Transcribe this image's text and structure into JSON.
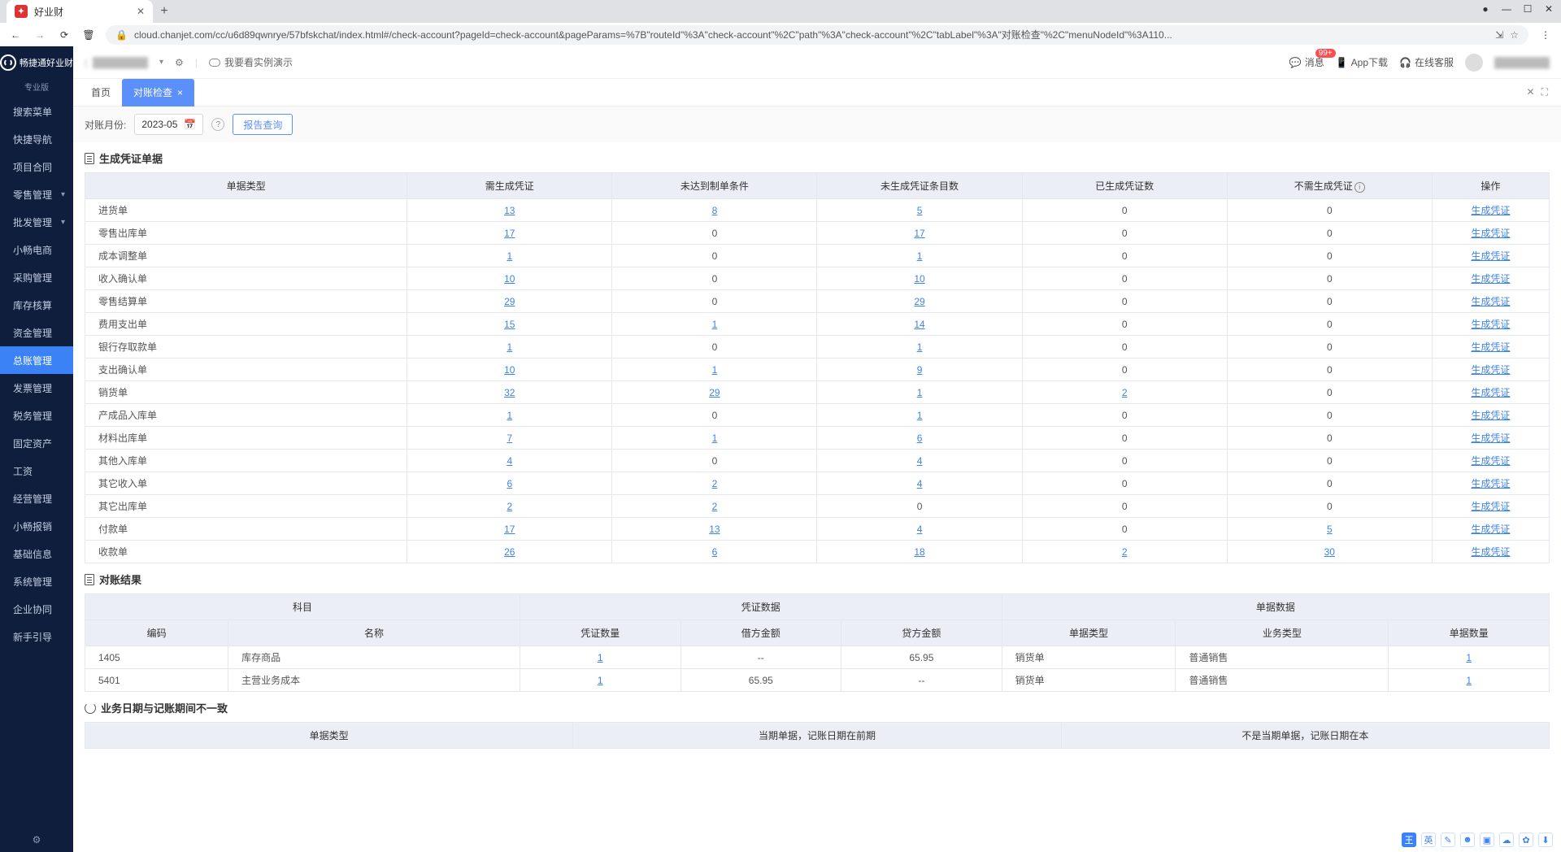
{
  "browser": {
    "tab_title": "好业财",
    "url": "cloud.chanjet.com/cc/u6d89qwnrye/57bfskchat/index.html#/check-account?pageId=check-account&pageParams=%7B\"routeId\"%3A\"check-account\"%2C\"path\"%3A\"check-account\"%2C\"tabLabel\"%3A\"对账检查\"%2C\"menuNodeId\"%3A110..."
  },
  "logo": {
    "name": "畅捷通好业财",
    "edition": "专业版"
  },
  "sidebar": [
    {
      "label": "搜索菜单",
      "chev": false
    },
    {
      "label": "快捷导航",
      "chev": false
    },
    {
      "label": "项目合同",
      "chev": false
    },
    {
      "label": "零售管理",
      "chev": true
    },
    {
      "label": "批发管理",
      "chev": true
    },
    {
      "label": "小畅电商",
      "chev": false
    },
    {
      "label": "采购管理",
      "chev": false
    },
    {
      "label": "库存核算",
      "chev": false
    },
    {
      "label": "资金管理",
      "chev": false
    },
    {
      "label": "总账管理",
      "chev": false,
      "active": true
    },
    {
      "label": "发票管理",
      "chev": false
    },
    {
      "label": "税务管理",
      "chev": false
    },
    {
      "label": "固定资产",
      "chev": false
    },
    {
      "label": "工资",
      "chev": false
    },
    {
      "label": "经营管理",
      "chev": false
    },
    {
      "label": "小畅报销",
      "chev": false
    },
    {
      "label": "基础信息",
      "chev": false
    },
    {
      "label": "系统管理",
      "chev": false
    },
    {
      "label": "企业协同",
      "chev": false
    },
    {
      "label": "新手引导",
      "chev": false
    }
  ],
  "topbar": {
    "org": "████████",
    "demo": "我要看实例演示",
    "msg": "消息",
    "msg_badge": "99+",
    "app": "App下载",
    "svc": "在线客服",
    "user": "████████"
  },
  "tabs": {
    "home": "首页",
    "active": "对账检查"
  },
  "filters": {
    "month_label": "对账月份:",
    "month_value": "2023-05",
    "query": "报告查询"
  },
  "section1": {
    "title": "生成凭证单据",
    "headers": [
      "单据类型",
      "需生成凭证",
      "未达到制单条件",
      "未生成凭证条目数",
      "已生成凭证数",
      "不需生成凭证",
      "操作"
    ],
    "info_col": 5,
    "rows": [
      {
        "type": "进货单",
        "c1": "13",
        "c2": "8",
        "c3": "5",
        "c4": "0",
        "c5": "0",
        "op": "生成凭证",
        "l": [
          1,
          2,
          3
        ]
      },
      {
        "type": "零售出库单",
        "c1": "17",
        "c2": "0",
        "c3": "17",
        "c4": "0",
        "c5": "0",
        "op": "生成凭证",
        "l": [
          1,
          3
        ]
      },
      {
        "type": "成本调整单",
        "c1": "1",
        "c2": "0",
        "c3": "1",
        "c4": "0",
        "c5": "0",
        "op": "生成凭证",
        "l": [
          1,
          3
        ]
      },
      {
        "type": "收入确认单",
        "c1": "10",
        "c2": "0",
        "c3": "10",
        "c4": "0",
        "c5": "0",
        "op": "生成凭证",
        "l": [
          1,
          3
        ]
      },
      {
        "type": "零售结算单",
        "c1": "29",
        "c2": "0",
        "c3": "29",
        "c4": "0",
        "c5": "0",
        "op": "生成凭证",
        "l": [
          1,
          3
        ]
      },
      {
        "type": "费用支出单",
        "c1": "15",
        "c2": "1",
        "c3": "14",
        "c4": "0",
        "c5": "0",
        "op": "生成凭证",
        "l": [
          1,
          2,
          3
        ]
      },
      {
        "type": "银行存取款单",
        "c1": "1",
        "c2": "0",
        "c3": "1",
        "c4": "0",
        "c5": "0",
        "op": "生成凭证",
        "l": [
          1,
          3
        ]
      },
      {
        "type": "支出确认单",
        "c1": "10",
        "c2": "1",
        "c3": "9",
        "c4": "0",
        "c5": "0",
        "op": "生成凭证",
        "l": [
          1,
          2,
          3
        ]
      },
      {
        "type": "销货单",
        "c1": "32",
        "c2": "29",
        "c3": "1",
        "c4": "2",
        "c5": "0",
        "op": "生成凭证",
        "l": [
          1,
          2,
          3,
          4
        ]
      },
      {
        "type": "产成品入库单",
        "c1": "1",
        "c2": "0",
        "c3": "1",
        "c4": "0",
        "c5": "0",
        "op": "生成凭证",
        "l": [
          1,
          3
        ]
      },
      {
        "type": "材料出库单",
        "c1": "7",
        "c2": "1",
        "c3": "6",
        "c4": "0",
        "c5": "0",
        "op": "生成凭证",
        "l": [
          1,
          2,
          3
        ]
      },
      {
        "type": "其他入库单",
        "c1": "4",
        "c2": "0",
        "c3": "4",
        "c4": "0",
        "c5": "0",
        "op": "生成凭证",
        "l": [
          1,
          3
        ]
      },
      {
        "type": "其它收入单",
        "c1": "6",
        "c2": "2",
        "c3": "4",
        "c4": "0",
        "c5": "0",
        "op": "生成凭证",
        "l": [
          1,
          2,
          3
        ]
      },
      {
        "type": "其它出库单",
        "c1": "2",
        "c2": "2",
        "c3": "0",
        "c4": "0",
        "c5": "0",
        "op": "生成凭证",
        "l": [
          1,
          2
        ]
      },
      {
        "type": "付款单",
        "c1": "17",
        "c2": "13",
        "c3": "4",
        "c4": "0",
        "c5": "5",
        "op": "生成凭证",
        "l": [
          1,
          2,
          3,
          5
        ]
      },
      {
        "type": "收款单",
        "c1": "26",
        "c2": "6",
        "c3": "18",
        "c4": "2",
        "c5": "30",
        "op": "生成凭证",
        "l": [
          1,
          2,
          3,
          4,
          5
        ]
      }
    ]
  },
  "section2": {
    "title": "对账结果",
    "h_subject": "科目",
    "h_voucher": "凭证数据",
    "h_doc": "单据数据",
    "hs": [
      "编码",
      "名称",
      "凭证数量",
      "借方金额",
      "贷方金额",
      "单据类型",
      "业务类型",
      "单据数量"
    ],
    "rows": [
      {
        "code": "1405",
        "name": "库存商品",
        "vq": "1",
        "dr": "--",
        "cr": "65.95",
        "dt": "销货单",
        "bt": "普通销售",
        "dq": "1"
      },
      {
        "code": "5401",
        "name": "主营业务成本",
        "vq": "1",
        "dr": "65.95",
        "cr": "--",
        "dt": "销货单",
        "bt": "普通销售",
        "dq": "1"
      }
    ]
  },
  "section3": {
    "title": "业务日期与记账期间不一致",
    "hs": [
      "单据类型",
      "当期单据，记账日期在前期",
      "不是当期单据，记账日期在本"
    ]
  }
}
